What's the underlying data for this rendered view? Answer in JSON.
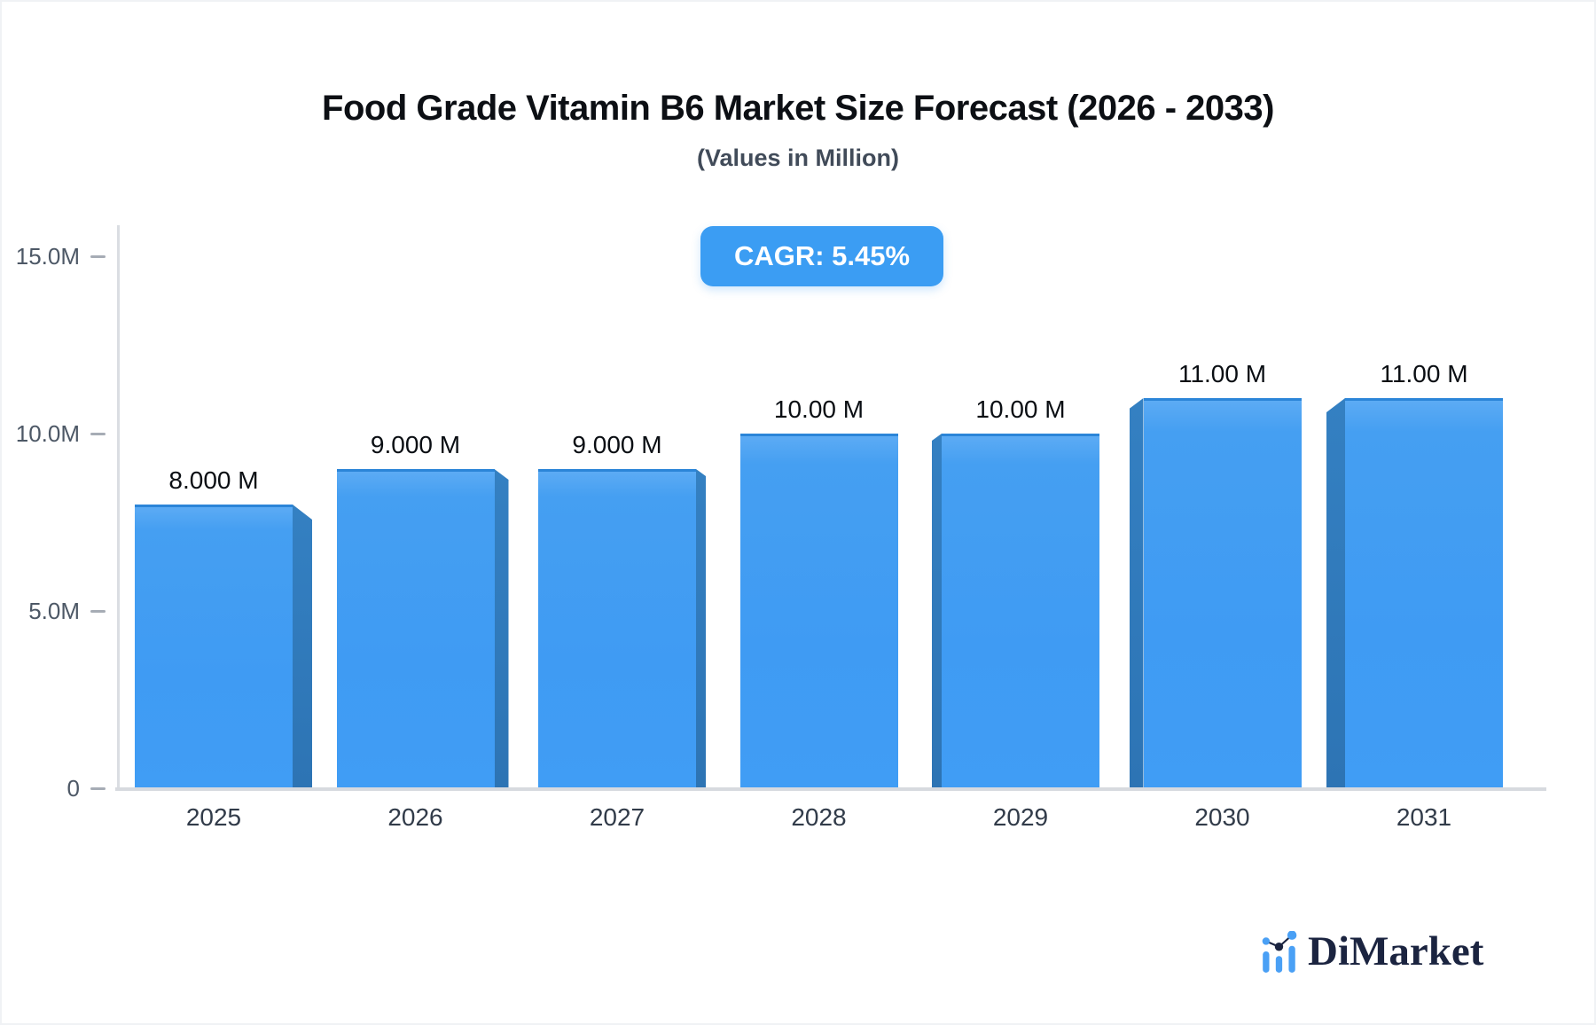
{
  "header": {
    "title": "Food Grade Vitamin B6 Market Size Forecast (2026 - 2033)",
    "subtitle": "(Values in Million)",
    "cagr_badge": {
      "label": "CAGR: 5.45%",
      "bg_color": "#3b9df3",
      "text_color": "#ffffff"
    }
  },
  "chart_data": {
    "type": "bar",
    "title": "Food Grade Vitamin B6 Market Size Forecast (2026 - 2033)",
    "subtitle": "(Values in Million)",
    "unit": "Million",
    "cagr": "5.45%",
    "categories": [
      "2025",
      "2026",
      "2027",
      "2028",
      "2029",
      "2030",
      "2031"
    ],
    "values": [
      8,
      9,
      9,
      10,
      10,
      11,
      11
    ],
    "value_labels": [
      "8.000 M",
      "9.000 M",
      "9.000 M",
      "10.00 M",
      "10.00 M",
      "11.00 M",
      "11.00 M"
    ],
    "ylim": [
      0,
      15
    ],
    "y_ticks": [
      {
        "label": "15.0M",
        "value": 15
      },
      {
        "label": "10.0M",
        "value": 10
      },
      {
        "label": "5.0M",
        "value": 5
      },
      {
        "label": "0",
        "value": 0
      }
    ],
    "grid": false,
    "legend": "none",
    "style": "3d-perspective-columns",
    "colors": {
      "bar_face": "#3f9bf3",
      "bar_face_highlight": "#5cabf4",
      "bar_top_edge": "#2b85d8",
      "bar_side": "#2d74b4",
      "axis_line": "#d8dbe0",
      "tick_mark": "#a6acb5",
      "y_label": "#4d5866",
      "category_label": "#313b49",
      "value_label": "#0a0e13"
    }
  },
  "branding": {
    "logo_text": "DiMarket",
    "logo_icon": "bar-chart-logo-icon",
    "logo_text_color": "#1b2440",
    "logo_icon_color": "#4aa0f5"
  }
}
